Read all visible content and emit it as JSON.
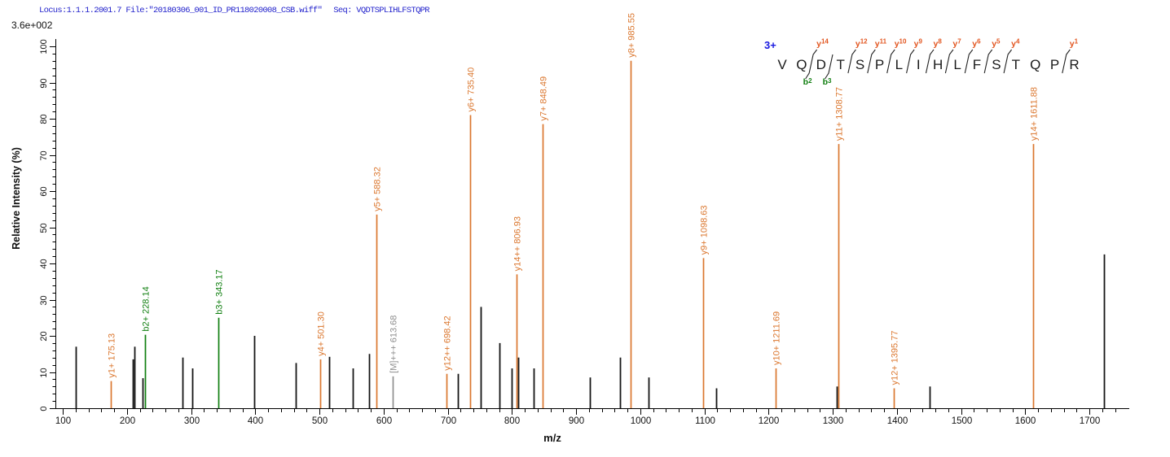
{
  "header": {
    "locus_file": "Locus:1.1.1.2001.7 File:\"20180306_001_ID_PR118020008_CSB.wiff\"",
    "seq_label": "Seq: VQDTSPLIHLFSTQPR",
    "max_intensity": "3.6e+002"
  },
  "colors": {
    "y_ion": "#DB772F",
    "b_ion": "#107F10",
    "precursor": "#8F8F8F",
    "unassigned": "#151515",
    "header_blue": "#2424CC",
    "charge_blue": "#1A1AE0",
    "seq_y_label": "#E2551F",
    "seq_b_label": "#0E7D0E",
    "axis": "#000000"
  },
  "sequence_annotation": {
    "charge": "3+",
    "residues": [
      "V",
      "Q",
      "D",
      "T",
      "S",
      "P",
      "L",
      "I",
      "H",
      "L",
      "F",
      "S",
      "T",
      "Q",
      "P",
      "R"
    ],
    "cleavages": [
      {
        "before": 2,
        "y": "14",
        "b": "2"
      },
      {
        "before": 3,
        "b": "3"
      },
      {
        "before": 4,
        "y": "12"
      },
      {
        "before": 5,
        "y": "11"
      },
      {
        "before": 6,
        "y": "10"
      },
      {
        "before": 7,
        "y": "9"
      },
      {
        "before": 8,
        "y": "8"
      },
      {
        "before": 9,
        "y": "7"
      },
      {
        "before": 10,
        "y": "6"
      },
      {
        "before": 11,
        "y": "5"
      },
      {
        "before": 12,
        "y": "4"
      },
      {
        "before": 15,
        "y": "1"
      }
    ]
  },
  "chart_data": {
    "type": "bar",
    "subtype": "mass-spectrum-stick-plot",
    "xlabel": "m/z",
    "ylabel": "Relative  Intensity  (%)",
    "xlim": [
      100,
      1760
    ],
    "ylim": [
      0,
      100
    ],
    "x_major_step": 100,
    "x_minor_step": 20,
    "x_label_min": 100,
    "x_label_max": 1700,
    "y_major_step": 10,
    "y_minor_step": 2,
    "grid": false,
    "peaks": [
      {
        "mz": 120,
        "intensity": 17,
        "type": "unassigned",
        "label": null
      },
      {
        "mz": 175.13,
        "intensity": 7.5,
        "type": "y",
        "label": "y1+ 175.13"
      },
      {
        "mz": 209,
        "intensity": 13.5,
        "type": "unassigned",
        "label": null
      },
      {
        "mz": 212,
        "intensity": 17,
        "type": "unassigned",
        "label": null
      },
      {
        "mz": 225,
        "intensity": 8.3,
        "type": "unassigned",
        "label": null
      },
      {
        "mz": 228.14,
        "intensity": 20.3,
        "type": "b",
        "label": "b2+ 228.14"
      },
      {
        "mz": 287,
        "intensity": 14,
        "type": "unassigned",
        "label": null
      },
      {
        "mz": 302,
        "intensity": 11,
        "type": "unassigned",
        "label": null
      },
      {
        "mz": 343.17,
        "intensity": 25,
        "type": "b",
        "label": "b3+ 343.17"
      },
      {
        "mz": 398,
        "intensity": 20,
        "type": "unassigned",
        "label": null
      },
      {
        "mz": 463,
        "intensity": 12.5,
        "type": "unassigned",
        "label": null
      },
      {
        "mz": 501.3,
        "intensity": 13.5,
        "type": "y",
        "label": "y4+ 501.30"
      },
      {
        "mz": 515,
        "intensity": 14.2,
        "type": "unassigned",
        "label": null
      },
      {
        "mz": 552,
        "intensity": 11,
        "type": "unassigned",
        "label": null
      },
      {
        "mz": 577,
        "intensity": 15,
        "type": "unassigned",
        "label": null
      },
      {
        "mz": 588.32,
        "intensity": 53.5,
        "type": "y",
        "label": "y5+ 588.32"
      },
      {
        "mz": 613.68,
        "intensity": 8.8,
        "type": "precursor",
        "label": "[M]+++ 613.68"
      },
      {
        "mz": 698.42,
        "intensity": 9.5,
        "type": "y",
        "label": "y12++ 698.42"
      },
      {
        "mz": 716,
        "intensity": 9.5,
        "type": "unassigned",
        "label": null
      },
      {
        "mz": 735.4,
        "intensity": 81,
        "type": "y",
        "label": "y6+ 735.40"
      },
      {
        "mz": 751,
        "intensity": 28,
        "type": "unassigned",
        "label": null
      },
      {
        "mz": 781,
        "intensity": 18,
        "type": "unassigned",
        "label": null
      },
      {
        "mz": 800,
        "intensity": 11,
        "type": "unassigned",
        "label": null
      },
      {
        "mz": 806.93,
        "intensity": 37,
        "type": "y",
        "label": "y14++ 806.93"
      },
      {
        "mz": 810,
        "intensity": 14,
        "type": "unassigned",
        "label": null
      },
      {
        "mz": 834,
        "intensity": 11,
        "type": "unassigned",
        "label": null
      },
      {
        "mz": 848.49,
        "intensity": 78.5,
        "type": "y",
        "label": "y7+ 848.49"
      },
      {
        "mz": 922,
        "intensity": 8.5,
        "type": "unassigned",
        "label": null
      },
      {
        "mz": 969,
        "intensity": 14,
        "type": "unassigned",
        "label": null
      },
      {
        "mz": 985.55,
        "intensity": 96,
        "type": "y",
        "label": "y8+ 985.55"
      },
      {
        "mz": 1013,
        "intensity": 8.5,
        "type": "unassigned",
        "label": null
      },
      {
        "mz": 1098.63,
        "intensity": 41.5,
        "type": "y",
        "label": "y9+ 1098.63"
      },
      {
        "mz": 1118,
        "intensity": 5.5,
        "type": "unassigned",
        "label": null
      },
      {
        "mz": 1211.69,
        "intensity": 11,
        "type": "y",
        "label": "y10+ 1211.69"
      },
      {
        "mz": 1306,
        "intensity": 6,
        "type": "unassigned",
        "label": null
      },
      {
        "mz": 1308.77,
        "intensity": 73,
        "type": "y",
        "label": "y11+ 1308.77"
      },
      {
        "mz": 1395.77,
        "intensity": 5.5,
        "type": "y",
        "label": "y12+ 1395.77"
      },
      {
        "mz": 1451,
        "intensity": 6,
        "type": "unassigned",
        "label": null
      },
      {
        "mz": 1611.88,
        "intensity": 73,
        "type": "y",
        "label": "y14+ 1611.88"
      },
      {
        "mz": 1723,
        "intensity": 42.5,
        "type": "unassigned",
        "label": null
      }
    ]
  }
}
